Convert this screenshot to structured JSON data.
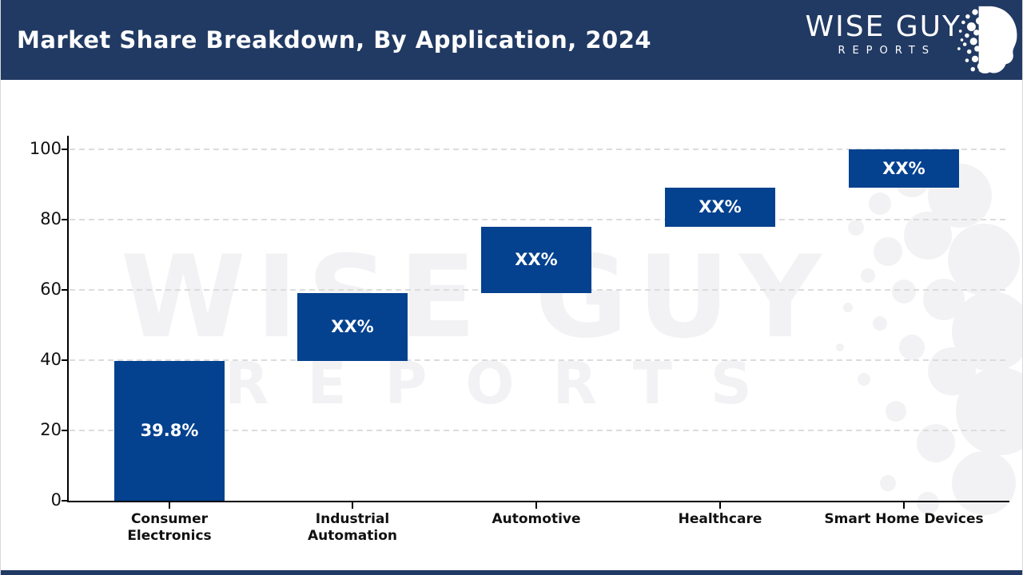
{
  "header": {
    "title": "Market Share Breakdown, By Application, 2024",
    "logo_line1": "WISE GUY",
    "logo_line2": "REPORTS"
  },
  "watermark": {
    "line1": "WISE GUY",
    "line2": "REPORTS"
  },
  "colors": {
    "header_bg": "#213a63",
    "bar_blue": "#04418f",
    "gridline": "#dcdcdc",
    "axis": "#000000",
    "bar_label": "#ffffff"
  },
  "chart_data": {
    "type": "bar",
    "subtype": "waterfall",
    "title": "Market Share Breakdown, By Application, 2024",
    "xlabel": "",
    "ylabel": "",
    "categories": [
      "Consumer Electronics",
      "Industrial Automation",
      "Automotive",
      "Healthcare",
      "Smart Home Devices"
    ],
    "tick_labels": [
      "Consumer\nElectronics",
      "Industrial\nAutomation",
      "Automotive",
      "Healthcare",
      "Smart Home Devices"
    ],
    "segments": [
      {
        "category": "Consumer Electronics",
        "label": "39.8%",
        "start": 0,
        "end": 39.8
      },
      {
        "category": "Industrial Automation",
        "label": "XX%",
        "start": 39.8,
        "end": 59.1
      },
      {
        "category": "Automotive",
        "label": "XX%",
        "start": 59.1,
        "end": 78.0
      },
      {
        "category": "Healthcare",
        "label": "XX%",
        "start": 78.0,
        "end": 89.1
      },
      {
        "category": "Smart Home Devices",
        "label": "XX%",
        "start": 89.1,
        "end": 100
      }
    ],
    "yticks": [
      0,
      20,
      40,
      60,
      80,
      100
    ],
    "ylim": [
      0,
      104
    ],
    "grid": "dashed-horizontal",
    "legend": "none",
    "bar_color": "#04418f",
    "value_label_color": "#ffffff"
  }
}
